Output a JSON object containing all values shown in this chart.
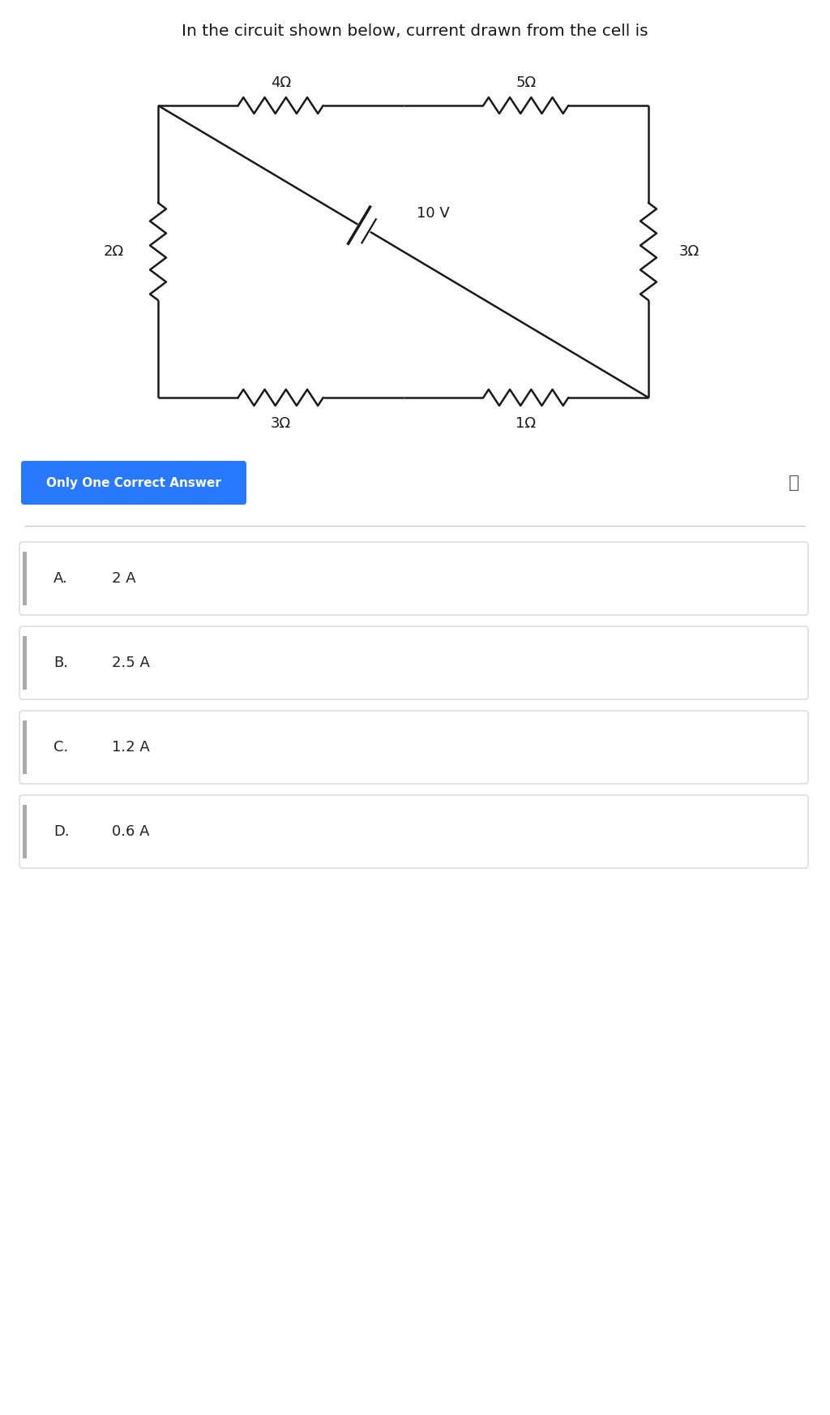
{
  "title": "In the circuit shown below, current drawn from the cell is",
  "title_fontsize": 14.5,
  "bg_color": "#ffffff",
  "circuit": {
    "resistor_4ohm_label": "4Ω",
    "resistor_5ohm_label": "5Ω",
    "resistor_3ohm_bot_label": "3Ω",
    "resistor_1ohm_label": "1Ω",
    "resistor_2ohm_label": "2Ω",
    "resistor_3ohm_right_label": "3Ω",
    "battery_label": "10 V",
    "line_color": "#1a1a1a",
    "line_width": 1.8
  },
  "answer_button": {
    "text": "Only One Correct Answer",
    "bg_color": "#2979FF",
    "text_color": "#ffffff",
    "fontsize": 11
  },
  "options": [
    {
      "label": "A.",
      "text": "2 A"
    },
    {
      "label": "B.",
      "text": "2.5 A"
    },
    {
      "label": "C.",
      "text": "1.2 A"
    },
    {
      "label": "D.",
      "text": "0.6 A"
    }
  ],
  "option_fontsize": 13,
  "option_label_fontsize": 13
}
